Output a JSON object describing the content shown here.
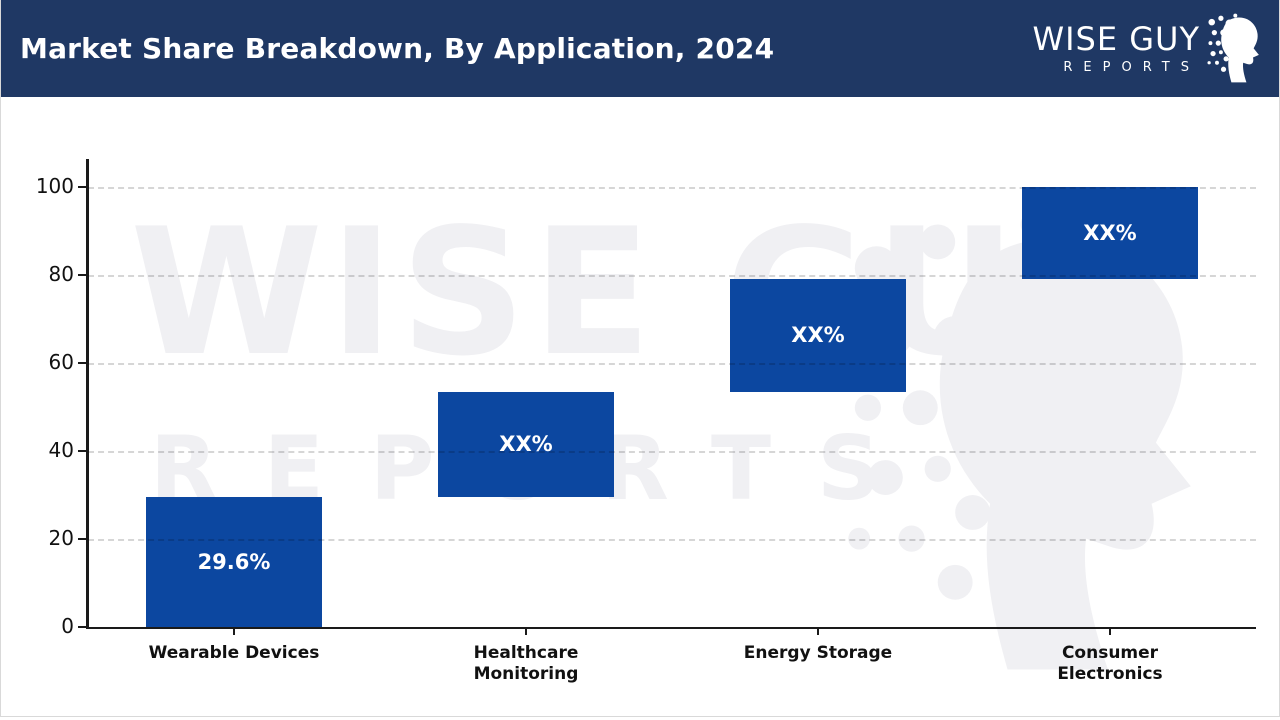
{
  "header": {
    "title": "Market Share Breakdown, By Application, 2024",
    "logo": {
      "line1": "WISE GUY",
      "line2": "REPORTS"
    }
  },
  "watermark": {
    "line1": "WISE GUY",
    "line2": "REPORTS"
  },
  "colors": {
    "header_bg": "#1f3864",
    "bar": "#0c47a0",
    "bar_label": "#ffffff",
    "axis": "#1a1a1a",
    "grid_dash": "rgba(0,0,0,0.16)",
    "watermark": "#f0f0f3",
    "page_border": "#d9d9d9",
    "title_text": "#ffffff",
    "tick_text": "#111111"
  },
  "chart_data": {
    "type": "bar",
    "variant": "waterfall",
    "title": "Market Share Breakdown, By Application, 2024",
    "categories": [
      "Wearable Devices",
      "Healthcare Monitoring",
      "Energy Storage",
      "Consumer Electronics"
    ],
    "segments": [
      {
        "category": "Wearable Devices",
        "start": 0,
        "end": 29.6,
        "label": "29.6%"
      },
      {
        "category": "Healthcare Monitoring",
        "start": 29.6,
        "end": 53.4,
        "label": "XX%"
      },
      {
        "category": "Energy Storage",
        "start": 53.4,
        "end": 79.2,
        "label": "XX%"
      },
      {
        "category": "Consumer Electronics",
        "start": 79.2,
        "end": 100,
        "label": "XX%"
      }
    ],
    "xlabel": "",
    "ylabel": "",
    "ylim": [
      0,
      105
    ],
    "yticks": [
      0,
      20,
      40,
      60,
      80,
      100
    ],
    "grid": "horizontal-dashed-over-bars",
    "legend": "none"
  }
}
